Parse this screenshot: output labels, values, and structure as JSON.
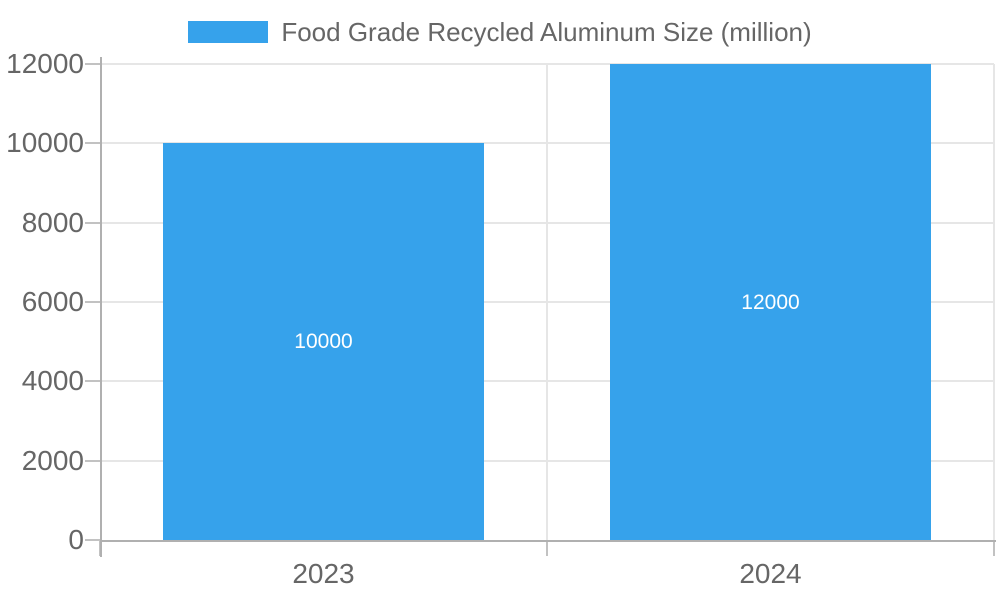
{
  "chart_data": {
    "type": "bar",
    "title": "Food Grade Recycled Aluminum Size (million)",
    "categories": [
      "2023",
      "2024"
    ],
    "series": [
      {
        "name": "Food Grade Recycled Aluminum Size (million)",
        "values": [
          10000,
          12000
        ]
      }
    ],
    "data_labels": [
      "10000",
      "12000"
    ],
    "y_ticks": [
      0,
      2000,
      4000,
      6000,
      8000,
      10000,
      12000
    ],
    "ylim": [
      0,
      12000
    ],
    "xlabel": "",
    "ylabel": "",
    "grid": true,
    "legend_position": "top",
    "colors": {
      "bar": "#36A2EB",
      "data_label": "#ffffff",
      "axis_text": "#666666",
      "gridline": "#e6e6e6",
      "axis_line": "#b0b0b0",
      "tick": "#c2c2c2"
    }
  }
}
